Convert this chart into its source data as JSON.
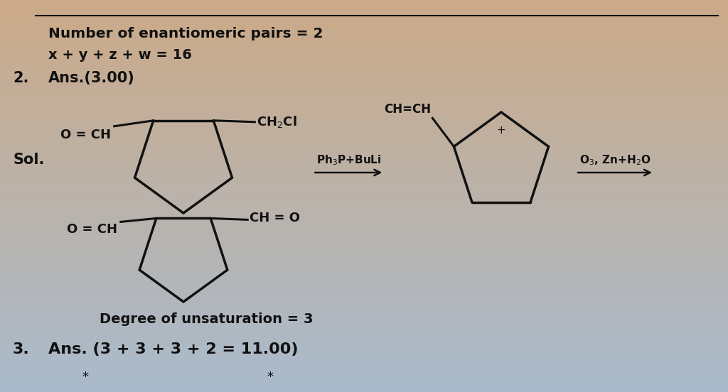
{
  "bg_color_top": "#c8a882",
  "bg_color_bottom": "#b8c8d8",
  "text_color": "#111111",
  "title_line1": "Number of enantiomeric pairs = 2",
  "title_line2": "x + y + z + w = 16",
  "ans2_num": "2.",
  "ans2_text": "Ans.(3.00)",
  "sol_label": "Sol.",
  "arrow1_label": "Ph₃P + BuLi",
  "arrow2_label": "O₃, Zn+H₂O",
  "ch2cl_label": "CH₂Cl",
  "och_label": "O = CH",
  "chch_label": "CH=CH",
  "cho_label": "CH = O",
  "degree_text": "Degree of unsaturation = 3",
  "ans3_num": "3.",
  "ans3_text": "Ans. (3 + 3 + 3 + 2 = 11.00)",
  "figsize": [
    10.24,
    5.52
  ],
  "dpi": 100
}
